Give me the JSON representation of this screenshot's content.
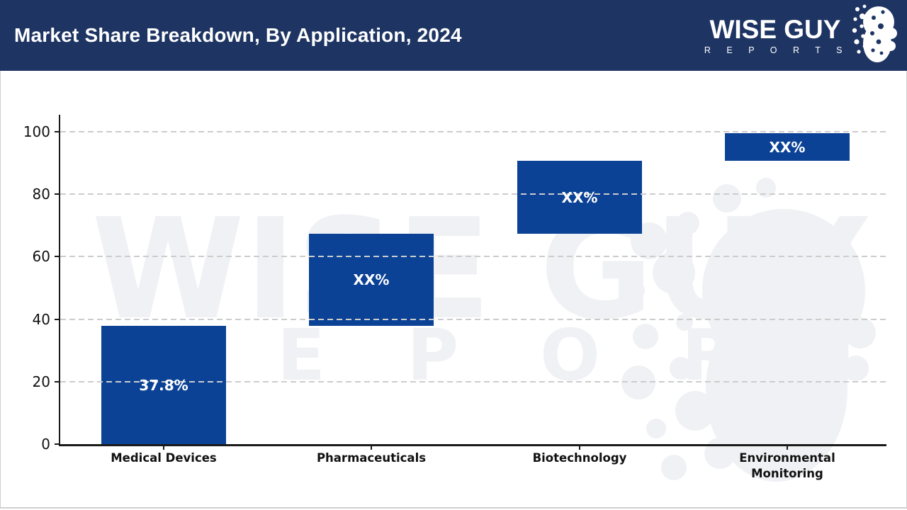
{
  "header": {
    "title": "Market Share Breakdown, By Application, 2024",
    "logo": {
      "line1": "WISE GUY",
      "line2": "R E P O R T S"
    }
  },
  "watermark": {
    "line1": "WISE GUY",
    "line2": "R E P O R T S"
  },
  "chart_data": {
    "type": "bar",
    "subtype": "waterfall",
    "title": "Market Share Breakdown, By Application, 2024",
    "xlabel": "",
    "ylabel": "",
    "ylim": [
      0,
      100
    ],
    "yticks": [
      0,
      20,
      40,
      60,
      80,
      100
    ],
    "grid": "horizontal dashed, drawn over bars",
    "legend": "none",
    "categories": [
      "Medical Devices",
      "Pharmaceuticals",
      "Biotechnology",
      "Environmental Monitoring"
    ],
    "segments": [
      {
        "category": "Medical Devices",
        "start": 0,
        "end": 37.8,
        "label": "37.8%"
      },
      {
        "category": "Pharmaceuticals",
        "start": 37.8,
        "end": 67.3,
        "label": "XX%"
      },
      {
        "category": "Biotechnology",
        "start": 67.3,
        "end": 90.7,
        "label": "XX%"
      },
      {
        "category": "Environmental Monitoring",
        "start": 90.7,
        "end": 99.5,
        "label": "XX%"
      }
    ],
    "colors": {
      "bar": "#0b4296",
      "bar_label": "#ffffff",
      "axis": "#1a1a1a",
      "grid": "#cccccc",
      "header_background": "#1e3563",
      "header_text": "#ffffff",
      "watermark": "#f0f1f4"
    }
  }
}
